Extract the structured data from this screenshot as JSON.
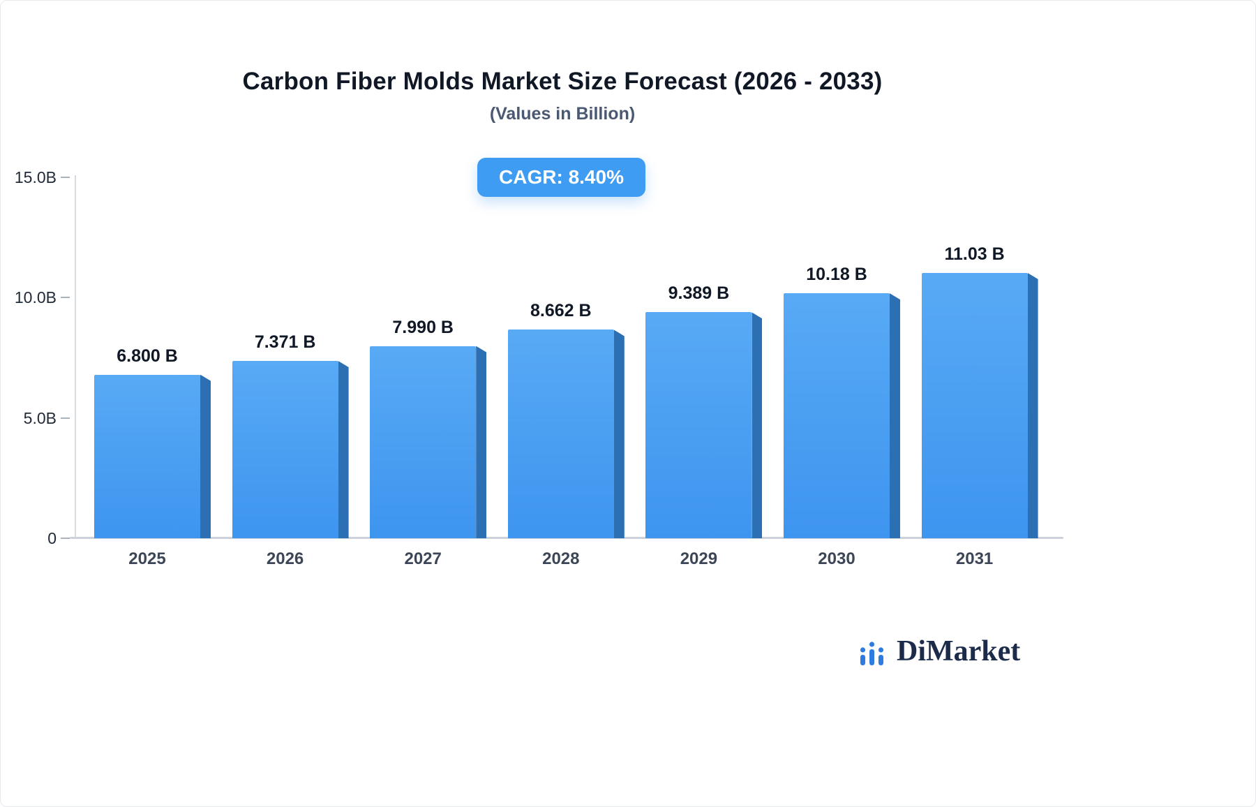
{
  "title": "Carbon Fiber Molds Market Size Forecast (2026 - 2033)",
  "subtitle": "(Values in Billion)",
  "badge": {
    "label": "CAGR: 8.40%"
  },
  "logo": {
    "text": "DiMarket"
  },
  "colors": {
    "bar_front_top": "#58aaf5",
    "bar_front_bottom": "#3e95ef",
    "bar_side": "#2d6fb3",
    "accent": "#3f9cf3",
    "logo_blue": "#2f7ce0",
    "logo_text": "#1c2b4a"
  },
  "chart_data": {
    "type": "bar",
    "title": "Carbon Fiber Molds Market Size Forecast (2026 - 2033)",
    "subtitle": "(Values in Billion)",
    "xlabel": "",
    "ylabel": "",
    "categories": [
      "2025",
      "2026",
      "2027",
      "2028",
      "2029",
      "2030",
      "2031"
    ],
    "values": [
      6.8,
      7.371,
      7.99,
      8.662,
      9.389,
      10.18,
      11.03
    ],
    "value_labels": [
      "6.800 B",
      "7.371 B",
      "7.990 B",
      "8.662 B",
      "9.389 B",
      "10.18 B",
      "11.03 B"
    ],
    "ylim": [
      0,
      15
    ],
    "yticks": [
      {
        "value": 15,
        "label": "15.0B"
      },
      {
        "value": 10,
        "label": "10.0B"
      },
      {
        "value": 5,
        "label": "5.0B"
      },
      {
        "value": 0,
        "label": "0"
      }
    ],
    "annotation": "CAGR: 8.40%",
    "grid": false,
    "legend": false
  }
}
